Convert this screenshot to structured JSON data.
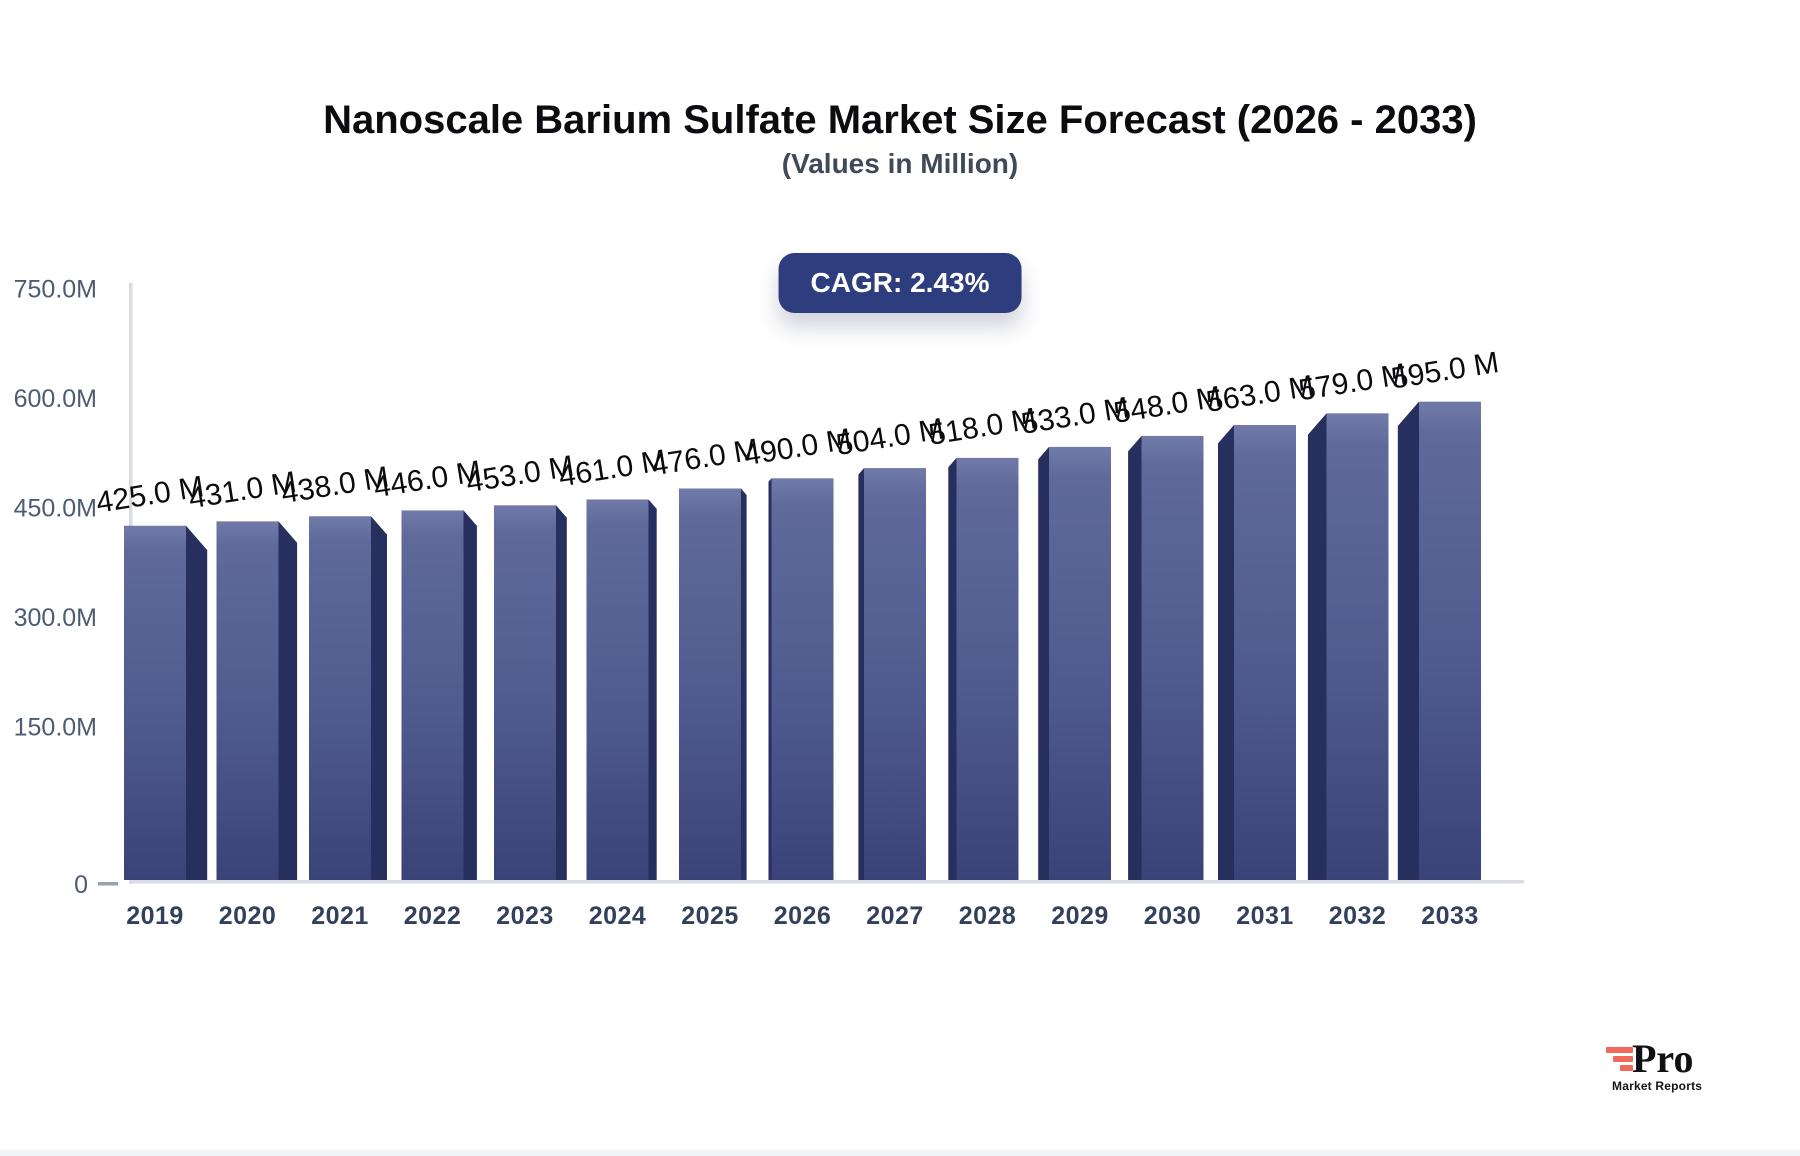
{
  "title": "Nanoscale Barium Sulfate Market Size Forecast (2026 - 2033)",
  "subtitle": "(Values in Million)",
  "badge": {
    "label": "CAGR: 2.43%"
  },
  "logo": {
    "name": "Pro",
    "tagline": "Market Reports"
  },
  "colors": {
    "bar_front_top": "#707ba9",
    "bar_front_upper": "#5f6a9b",
    "bar_front_mid": "#4f5a8e",
    "bar_front_bottom": "#3a4377",
    "bar_side": "#262f5d",
    "axis_line": "#d9dde3",
    "zero_tick": "#97a2af",
    "badge_bg": "#2e3d7d",
    "badge_text": "#ffffff",
    "value_label": "#0b0b0e",
    "x_tick": "#32405c",
    "y_tick": "#4d5c72",
    "logo_accent": "#f0695c",
    "logo_text": "#101015"
  },
  "chart_data": {
    "type": "bar",
    "title": "Nanoscale Barium Sulfate Market Size Forecast (2026 - 2033)",
    "subtitle": "(Values in Million)",
    "cagr_label": "CAGR: 2.43%",
    "xlabel": "",
    "ylabel": "",
    "categories": [
      "2019",
      "2020",
      "2021",
      "2022",
      "2023",
      "2024",
      "2025",
      "2026",
      "2027",
      "2028",
      "2029",
      "2030",
      "2031",
      "2032",
      "2033"
    ],
    "values": [
      425,
      431,
      438,
      446,
      453,
      461,
      476,
      490,
      504,
      518,
      533,
      548,
      563,
      579,
      595
    ],
    "value_labels": [
      "425.0 M",
      "431.0 M",
      "438.0 M",
      "446.0 M",
      "453.0 M",
      "461.0 M",
      "476.0 M",
      "490.0 M",
      "504.0 M",
      "518.0 M",
      "533.0 M",
      "548.0 M",
      "563.0 M",
      "579.0 M",
      "595.0 M"
    ],
    "unit": "Million",
    "ylim": [
      0,
      750
    ],
    "yticks": [
      0,
      150,
      300,
      450,
      600,
      750
    ],
    "ytick_labels": [
      "0",
      "150.0M",
      "300.0M",
      "450.0M",
      "600.0M",
      "750.0M"
    ],
    "grid": false,
    "legend": "none",
    "style": "3d-perspective-bars"
  }
}
